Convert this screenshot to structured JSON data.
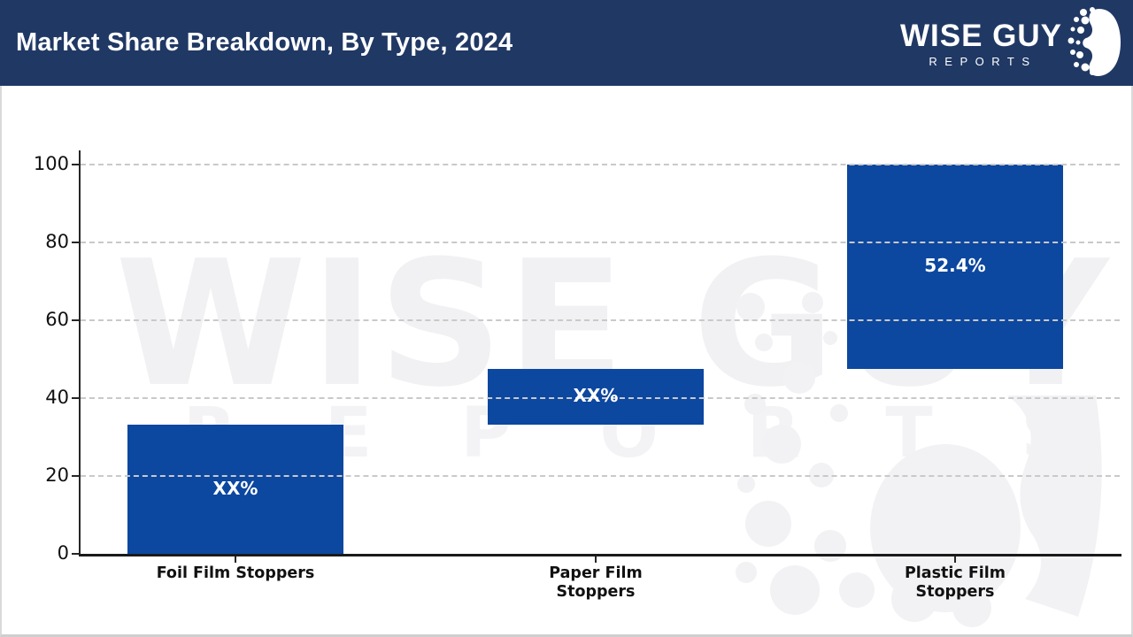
{
  "header": {
    "title": "Market Share Breakdown, By Type, 2024",
    "logo": {
      "line1": "WISE GUY",
      "line2": "REPORTS"
    }
  },
  "watermark": {
    "line1": "WISE GUY",
    "line2": "REPORTS"
  },
  "colors": {
    "header_bg": "#203864",
    "bar": "#0C47A0",
    "grid": "#c9c9c9",
    "axis": "#262626",
    "card_border": "#d9d9d9",
    "watermark": "#f1f1f4",
    "bar_label_text": "#ffffff",
    "tick_text": "#111111"
  },
  "chart_data": {
    "type": "bar",
    "subtype": "waterfall",
    "title": "Market Share Breakdown, By Type, 2024",
    "categories": [
      "Foil Film Stoppers",
      "Paper Film Stoppers",
      "Plastic Film Stoppers"
    ],
    "category_lines": [
      [
        "Foil Film Stoppers"
      ],
      [
        "Paper Film",
        "Stoppers"
      ],
      [
        "Plastic Film",
        "Stoppers"
      ]
    ],
    "values": [
      33.2,
      14.4,
      52.4
    ],
    "labels": [
      "XX%",
      "XX%",
      "52.4%"
    ],
    "bars": [
      {
        "category": "Foil Film Stoppers",
        "label": "XX%",
        "start": 0,
        "end": 33.2,
        "value": 33.2
      },
      {
        "category": "Paper Film Stoppers",
        "label": "XX%",
        "start": 33.2,
        "end": 47.6,
        "value": 14.4
      },
      {
        "category": "Plastic Film Stoppers",
        "label": "52.4%",
        "start": 47.6,
        "end": 100,
        "value": 52.4
      }
    ],
    "xlabel": "",
    "ylabel": "",
    "yticks": [
      0,
      20,
      40,
      60,
      80,
      100
    ],
    "ylim": [
      0,
      100
    ],
    "grid": "dashed horizontal",
    "legend_position": "none",
    "bar_color": "#0C47A0"
  }
}
